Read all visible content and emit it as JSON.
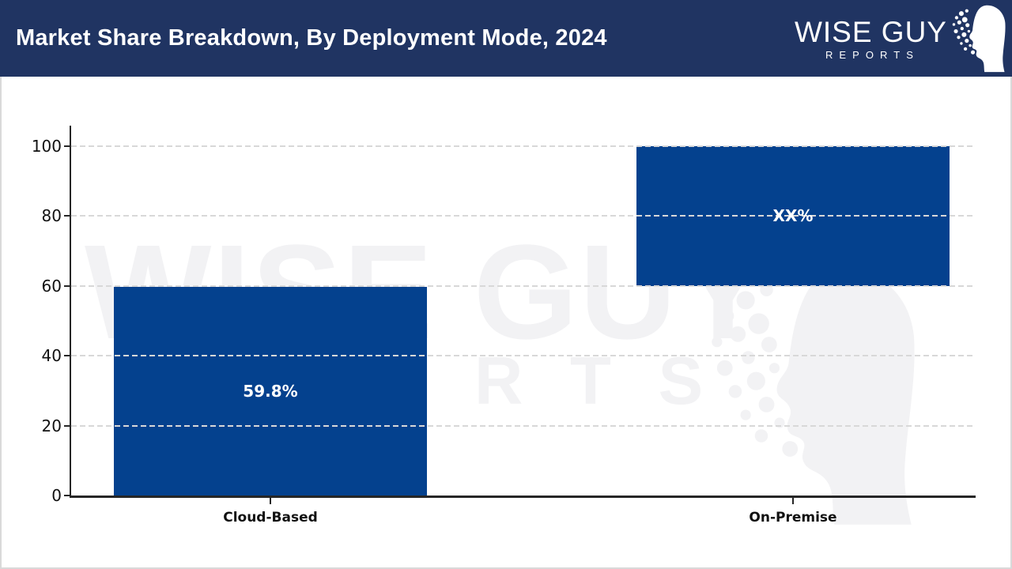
{
  "header": {
    "title": "Market Share Breakdown, By Deployment Mode, 2024",
    "logo": {
      "wordmark": "WISE GUY",
      "subwordmark": "REPORTS"
    },
    "colors": {
      "background": "#203462",
      "text": "#ffffff"
    }
  },
  "watermark": {
    "line1": "WISE GUY",
    "line2": "R T S"
  },
  "chart_data": {
    "type": "bar",
    "title": "Market Share Breakdown, By Deployment Mode, 2024",
    "categories": [
      "Cloud-Based",
      "On-Premise"
    ],
    "bars": [
      {
        "category": "Cloud-Based",
        "start": 0,
        "end": 59.8,
        "label": "59.8%"
      },
      {
        "category": "On-Premise",
        "start": 60,
        "end": 100,
        "label": "XX%"
      }
    ],
    "xlabel": "",
    "ylabel": "",
    "ylim": [
      0,
      100
    ],
    "yticks": [
      0,
      20,
      40,
      60,
      80,
      100
    ],
    "bar_color": "#04418e",
    "grid": "horizontal-dashed",
    "gridline_color": "#d8d8d8",
    "legend": "none"
  }
}
